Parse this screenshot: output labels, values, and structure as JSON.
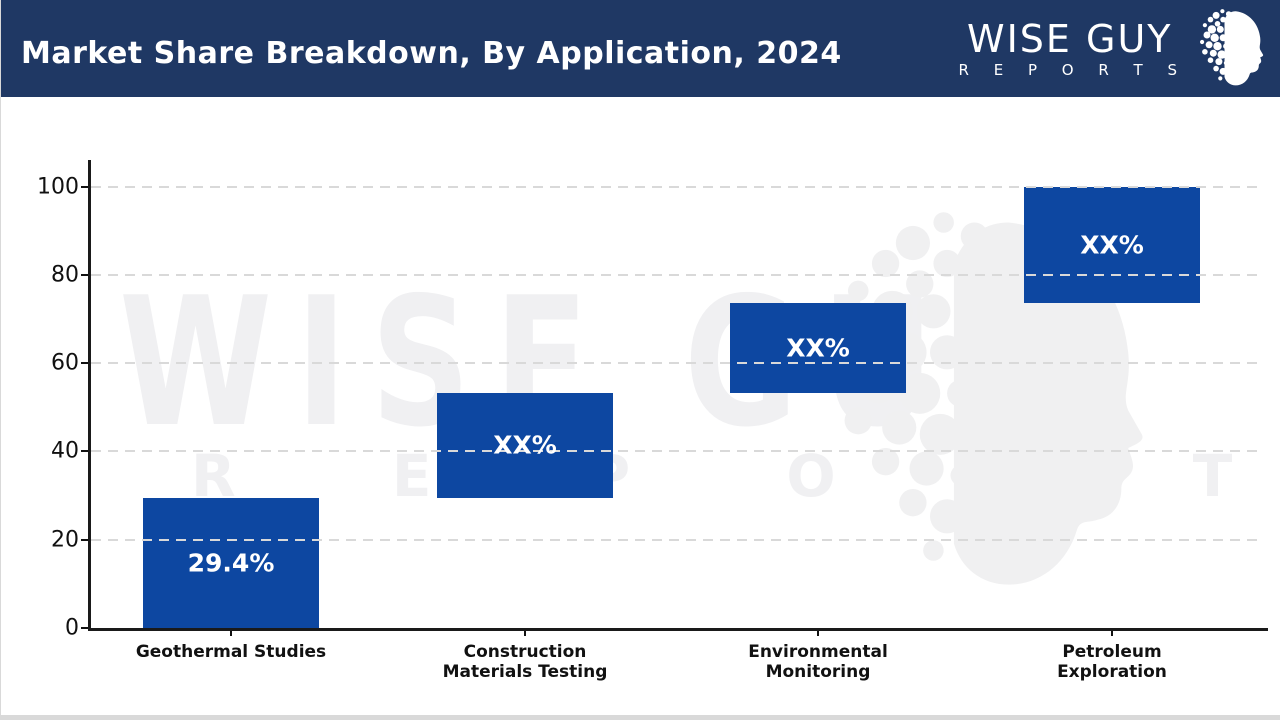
{
  "header": {
    "title": "Market Share Breakdown, By Application, 2024",
    "logo": {
      "line1": "WISE GUY",
      "line2": "R E P O R T S"
    }
  },
  "watermark": {
    "line1": "WISE GUY",
    "line2": "R E P O R T S"
  },
  "chart_data": {
    "type": "bar",
    "subtype": "waterfall",
    "title": "Market Share Breakdown, By Application, 2024",
    "xlabel": "",
    "ylabel": "",
    "ylim": [
      0,
      106
    ],
    "y_ticks": [
      0,
      20,
      40,
      60,
      80,
      100
    ],
    "grid": "horizontal dashed, drawn above bars",
    "legend": "none",
    "bar_color": "#0d47a1",
    "bar_label_color": "#ffffff",
    "categories": [
      "Geothermal Studies",
      "Construction Materials Testing",
      "Environmental Monitoring",
      "Petroleum Exploration"
    ],
    "categories_lines": [
      [
        "Geothermal Studies"
      ],
      [
        "Construction",
        "Materials Testing"
      ],
      [
        "Environmental",
        "Monitoring"
      ],
      [
        "Petroleum",
        "Exploration"
      ]
    ],
    "segments": [
      {
        "category": "Geothermal Studies",
        "start": 0,
        "end": 29.4,
        "label": "29.4%"
      },
      {
        "category": "Construction Materials Testing",
        "start": 29.4,
        "end": 53.3,
        "label": "XX%"
      },
      {
        "category": "Environmental Monitoring",
        "start": 53.3,
        "end": 73.5,
        "label": "XX%"
      },
      {
        "category": "Petroleum Exploration",
        "start": 73.5,
        "end": 100,
        "label": "XX%"
      }
    ]
  },
  "colors": {
    "header_bg": "#1f3864",
    "bar": "#0d47a1",
    "grid": "#d9d9d9",
    "axis": "#1a1a1a",
    "watermark": "#f0f0f2"
  }
}
